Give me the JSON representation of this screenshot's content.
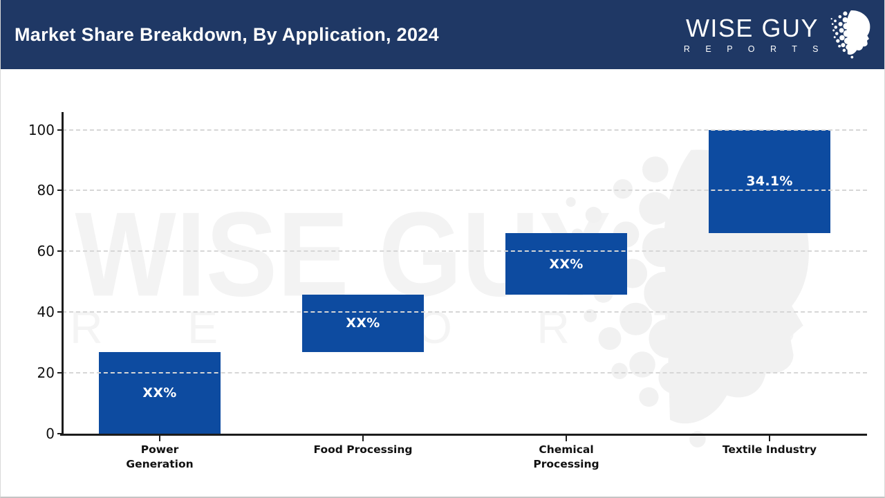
{
  "header": {
    "title": "Market Share Breakdown, By Application, 2024",
    "bg_color": "#1f3865",
    "logo": {
      "line1": "WISE GUY",
      "line2": "R E P O R T S"
    }
  },
  "watermark": {
    "line1": "WISE GUY",
    "line2": "R E P O R T S"
  },
  "chart_data": {
    "type": "bar",
    "subtype": "floating-waterfall",
    "title": "Market Share Breakdown, By Application, 2024",
    "categories": [
      "Power Generation",
      "Food Processing",
      "Chemical Processing",
      "Textile Industry"
    ],
    "segments": [
      {
        "category": "Power Generation",
        "start": 0,
        "end": 26.9,
        "value": 26.9,
        "label": "XX%"
      },
      {
        "category": "Food Processing",
        "start": 26.9,
        "end": 45.8,
        "value": 18.9,
        "label": "XX%"
      },
      {
        "category": "Chemical Processing",
        "start": 45.8,
        "end": 65.9,
        "value": 20.1,
        "label": "XX%"
      },
      {
        "category": "Textile Industry",
        "start": 65.9,
        "end": 100,
        "value": 34.1,
        "label": "34.1%"
      }
    ],
    "xlabel": "",
    "ylabel": "",
    "ylim": [
      0,
      106
    ],
    "yticks": [
      0,
      20,
      40,
      60,
      80,
      100
    ],
    "grid": "horizontal-dashed",
    "legend": "none",
    "bar_color": "#0d4ba0",
    "bar_label_color": "#ffffff",
    "axis_color": "#1c1c1c",
    "grid_color": "#d6d6d6"
  }
}
